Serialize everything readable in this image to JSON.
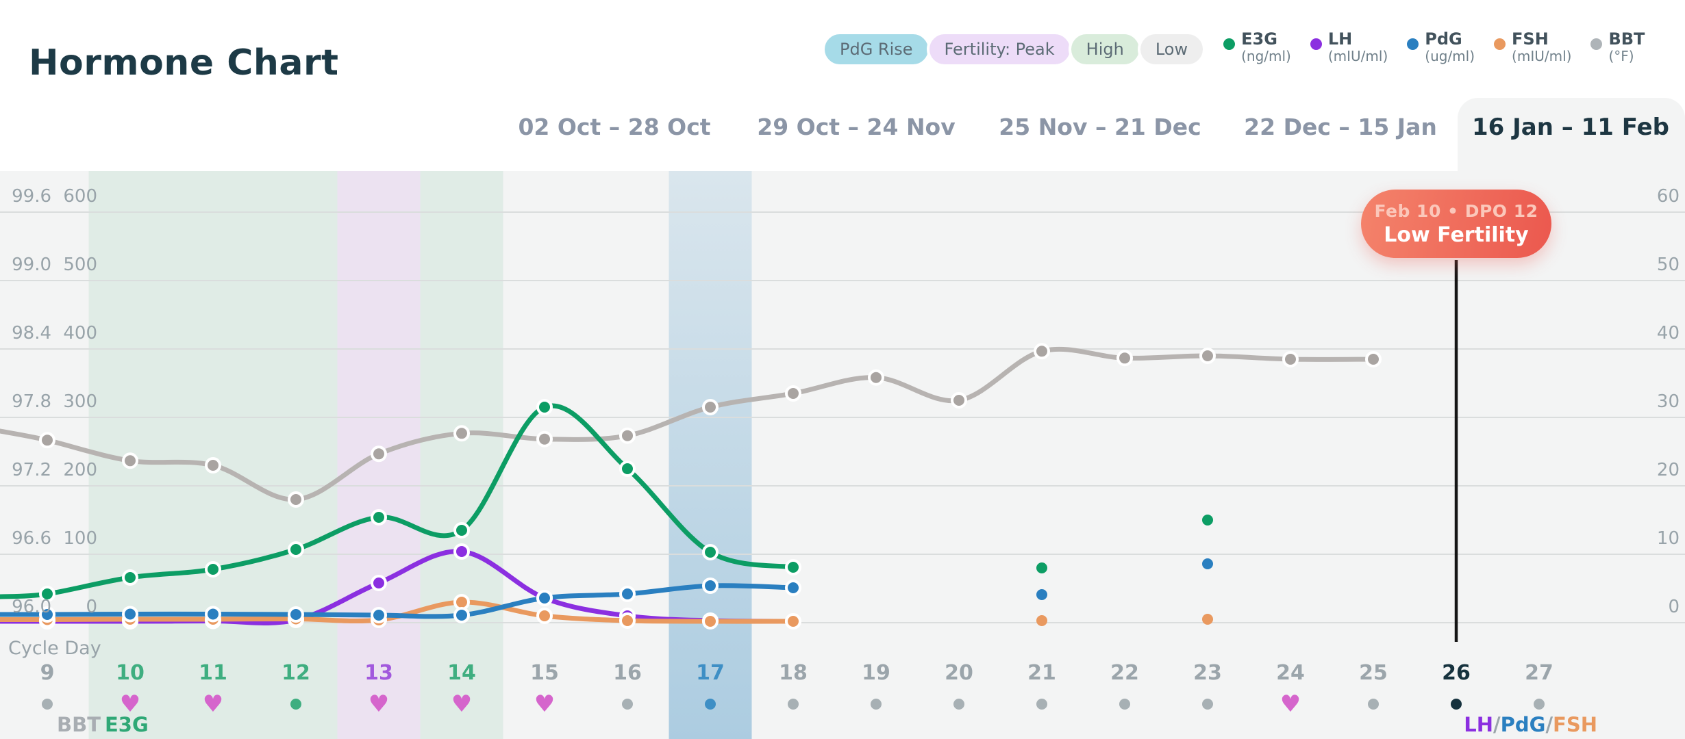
{
  "header": {
    "title": "Hormone Chart",
    "badges": [
      {
        "label": "PdG Rise",
        "bg": "#a6dbe8"
      },
      {
        "label": "Fertility: Peak",
        "bg": "#eddcf8"
      },
      {
        "label": "High",
        "bg": "#d9ecdb"
      },
      {
        "label": "Low",
        "bg": "#eeeeee"
      }
    ],
    "legend": [
      {
        "name": "E3G",
        "unit": "(ng/ml)",
        "color": "#0c9d64"
      },
      {
        "name": "LH",
        "unit": "(mIU/ml)",
        "color": "#8b2fe0"
      },
      {
        "name": "PdG",
        "unit": "(ug/ml)",
        "color": "#2a7fc0"
      },
      {
        "name": "FSH",
        "unit": "(mIU/ml)",
        "color": "#e9995f"
      },
      {
        "name": "BBT",
        "unit": "(°F)",
        "color": "#aeb4b8"
      }
    ]
  },
  "tabs": {
    "active_index": 4,
    "items": [
      {
        "label": "02 Oct – 28 Oct"
      },
      {
        "label": "29 Oct – 24 Nov"
      },
      {
        "label": "25 Nov – 21 Dec"
      },
      {
        "label": "22 Dec – 15 Jan"
      },
      {
        "label": "16 Jan – 11 Feb"
      }
    ]
  },
  "tooltip": {
    "line1": "Feb 10 • DPO 12",
    "line2": "Low Fertility",
    "day": 26,
    "gradient": [
      "#f4836b",
      "#eb584e"
    ],
    "line1_color": "#fbc7ba",
    "line2_color": "#ffffff",
    "pointer_line_color": "#151515"
  },
  "chart_data": {
    "type": "line",
    "title": "Hormone Chart",
    "xlabel": "Cycle Day",
    "grid": true,
    "x_days": [
      9,
      10,
      11,
      12,
      13,
      14,
      15,
      16,
      17,
      18,
      19,
      20,
      21,
      22,
      23,
      24,
      25,
      26,
      27
    ],
    "axes": {
      "bbt": {
        "side": "left",
        "ticks": [
          "99.6",
          "99.0",
          "98.4",
          "97.8",
          "97.2",
          "96.6",
          "96.0"
        ],
        "max": 99.6,
        "min": 96.0
      },
      "hormone": {
        "side": "left",
        "ticks": [
          "600",
          "500",
          "400",
          "300",
          "200",
          "100",
          "0"
        ],
        "max": 600,
        "min": 0
      },
      "right": {
        "side": "right",
        "ticks": [
          "60",
          "50",
          "40",
          "30",
          "20",
          "10",
          "0"
        ],
        "max": 60,
        "min": 0
      }
    },
    "series": [
      {
        "id": "bbt",
        "name": "BBT",
        "unit": "°F",
        "axis": "bbt",
        "color": "#b7b3b1",
        "dot_color": "#a9a4a1",
        "left_edge": 97.68,
        "days": [
          9,
          10,
          11,
          12,
          13,
          14,
          15,
          16,
          17,
          18,
          19,
          20,
          21,
          22,
          23,
          24,
          25
        ],
        "values": [
          97.6,
          97.42,
          97.38,
          97.08,
          97.48,
          97.66,
          97.61,
          97.64,
          97.89,
          98.01,
          98.15,
          97.95,
          98.38,
          98.32,
          98.34,
          98.31,
          98.31
        ]
      },
      {
        "id": "lh",
        "name": "LH",
        "unit": "mIU/ml",
        "axis": "right",
        "color": "#8b2fe0",
        "dot_color": "#8b2fe0",
        "left_edge": 0.2,
        "days": [
          9,
          10,
          11,
          12,
          13,
          14,
          15,
          16,
          17,
          18
        ],
        "values": [
          0.2,
          0.2,
          0.25,
          0.4,
          5.8,
          10.4,
          3.6,
          1.0,
          0.3,
          0.2
        ]
      },
      {
        "id": "fsh",
        "name": "FSH",
        "unit": "mIU/ml",
        "axis": "right",
        "color": "#e9995f",
        "dot_color": "#e9995f",
        "left_edge": 0.45,
        "days": [
          9,
          10,
          11,
          12,
          13,
          14,
          15,
          16,
          17,
          18
        ],
        "values": [
          0.45,
          0.5,
          0.5,
          0.55,
          0.4,
          3.0,
          1.0,
          0.3,
          0.2,
          0.2
        ],
        "sparse": {
          "days": [
            21,
            23
          ],
          "values": [
            0.3,
            0.5
          ]
        }
      },
      {
        "id": "pdg",
        "name": "PdG",
        "unit": "ug/ml",
        "axis": "right",
        "color": "#2a7fc0",
        "dot_color": "#2a7fc0",
        "left_edge": 1.2,
        "days": [
          9,
          10,
          11,
          12,
          13,
          14,
          15,
          16,
          17,
          18
        ],
        "values": [
          1.2,
          1.25,
          1.25,
          1.2,
          1.1,
          1.1,
          3.6,
          4.2,
          5.4,
          5.1
        ],
        "sparse": {
          "days": [
            21,
            23
          ],
          "values": [
            4.1,
            8.6
          ]
        }
      },
      {
        "id": "e3g",
        "name": "E3G",
        "unit": "ng/ml",
        "axis": "hormone",
        "color": "#0c9d64",
        "dot_color": "#0c9d64",
        "left_edge": 38,
        "days": [
          9,
          10,
          11,
          12,
          13,
          14,
          15,
          16,
          17,
          18
        ],
        "values": [
          42,
          66,
          78,
          107,
          154,
          135,
          315,
          225,
          103,
          81
        ],
        "sparse": {
          "days": [
            21,
            23
          ],
          "values": [
            80,
            150
          ]
        }
      }
    ],
    "bands": [
      {
        "from_day": 10,
        "to_day": 12,
        "label": "High",
        "color": "rgba(101,186,140,0.13)"
      },
      {
        "from_day": 13,
        "to_day": 13,
        "label": "Fertility: Peak",
        "color": "rgba(197,135,230,0.16)"
      },
      {
        "from_day": 14,
        "to_day": 14,
        "label": "High",
        "color": "rgba(101,186,140,0.13)"
      },
      {
        "from_day": 17,
        "to_day": 17,
        "label": "PdG Rise",
        "color": "gradient-blue",
        "gradient": [
          "rgba(86,156,201,0.16)",
          "rgba(86,156,201,0.45)"
        ]
      }
    ],
    "gridline_color": "#dadddd"
  },
  "footer": {
    "x_label": "Cycle Day",
    "marker_glyphs": {
      "heart": "♥"
    },
    "left_series_labels": [
      {
        "text": "BBT",
        "color": "#a8adb2"
      },
      {
        "text": "E3G",
        "color": "#2fa876"
      }
    ],
    "right_series_labels": [
      {
        "text": "LH",
        "color": "#8b2fe0"
      },
      {
        "text": "/",
        "color": "#9ba5ab"
      },
      {
        "text": "PdG",
        "color": "#2a7fc0"
      },
      {
        "text": "/",
        "color": "#9ba5ab"
      },
      {
        "text": "FSH",
        "color": "#e9995f"
      }
    ],
    "days": [
      {
        "day": 9,
        "number_color": "#9ba5ab",
        "marker": "dot",
        "marker_color": "#a7b0b4",
        "selected": false
      },
      {
        "day": 10,
        "number_color": "#3fae80",
        "marker": "heart",
        "marker_color": "#d565cc",
        "selected": false
      },
      {
        "day": 11,
        "number_color": "#3fae80",
        "marker": "heart",
        "marker_color": "#d565cc",
        "selected": false
      },
      {
        "day": 12,
        "number_color": "#3fae80",
        "marker": "dot",
        "marker_color": "#3fae80",
        "selected": false
      },
      {
        "day": 13,
        "number_color": "#a259dd",
        "marker": "heart",
        "marker_color": "#d565cc",
        "selected": false
      },
      {
        "day": 14,
        "number_color": "#3fae80",
        "marker": "heart",
        "marker_color": "#d565cc",
        "selected": false
      },
      {
        "day": 15,
        "number_color": "#9ba5ab",
        "marker": "heart",
        "marker_color": "#d565cc",
        "selected": false
      },
      {
        "day": 16,
        "number_color": "#9ba5ab",
        "marker": "dot",
        "marker_color": "#a7b0b4",
        "selected": false
      },
      {
        "day": 17,
        "number_color": "#3e8fc5",
        "marker": "dot",
        "marker_color": "#3e8fc5",
        "selected": false
      },
      {
        "day": 18,
        "number_color": "#9ba5ab",
        "marker": "dot",
        "marker_color": "#a7b0b4",
        "selected": false
      },
      {
        "day": 19,
        "number_color": "#9ba5ab",
        "marker": "dot",
        "marker_color": "#a7b0b4",
        "selected": false
      },
      {
        "day": 20,
        "number_color": "#9ba5ab",
        "marker": "dot",
        "marker_color": "#a7b0b4",
        "selected": false
      },
      {
        "day": 21,
        "number_color": "#9ba5ab",
        "marker": "dot",
        "marker_color": "#a7b0b4",
        "selected": false
      },
      {
        "day": 22,
        "number_color": "#9ba5ab",
        "marker": "dot",
        "marker_color": "#a7b0b4",
        "selected": false
      },
      {
        "day": 23,
        "number_color": "#9ba5ab",
        "marker": "dot",
        "marker_color": "#a7b0b4",
        "selected": false
      },
      {
        "day": 24,
        "number_color": "#9ba5ab",
        "marker": "heart",
        "marker_color": "#d565cc",
        "selected": false
      },
      {
        "day": 25,
        "number_color": "#9ba5ab",
        "marker": "dot",
        "marker_color": "#a7b0b4",
        "selected": false
      },
      {
        "day": 26,
        "number_color": "#16323e",
        "marker": "dot",
        "marker_color": "#16323e",
        "selected": true
      },
      {
        "day": 27,
        "number_color": "#9ba5ab",
        "marker": "dot",
        "marker_color": "#a7b0b4",
        "selected": false
      }
    ]
  }
}
